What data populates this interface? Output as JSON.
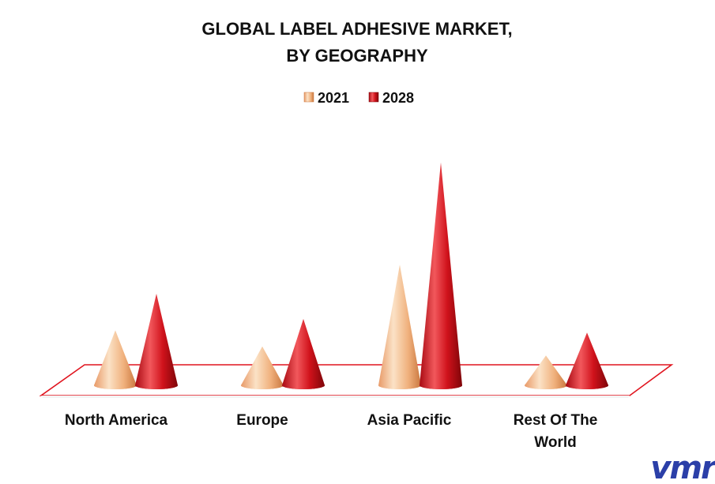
{
  "chart_data": {
    "type": "bar",
    "shape": "cone-3d",
    "title_lines": [
      "GLOBAL LABEL ADHESIVE MARKET,",
      "BY GEOGRAPHY"
    ],
    "categories": [
      [
        "North America"
      ],
      [
        "Europe"
      ],
      [
        "Asia Pacific"
      ],
      [
        "Rest Of The",
        "World"
      ]
    ],
    "series": [
      {
        "name": "2021",
        "values": [
          72,
          51,
          158,
          39
        ],
        "color": "#F2B98A"
      },
      {
        "name": "2028",
        "values": [
          120,
          87,
          292,
          69
        ],
        "color": "#D0121B"
      }
    ],
    "ylim": [
      0,
      300
    ],
    "legend_position": "top-center",
    "grid": false,
    "floor_color": "#E0141E"
  },
  "logo": {
    "text": "vmr",
    "color": "#2B3FA8"
  }
}
